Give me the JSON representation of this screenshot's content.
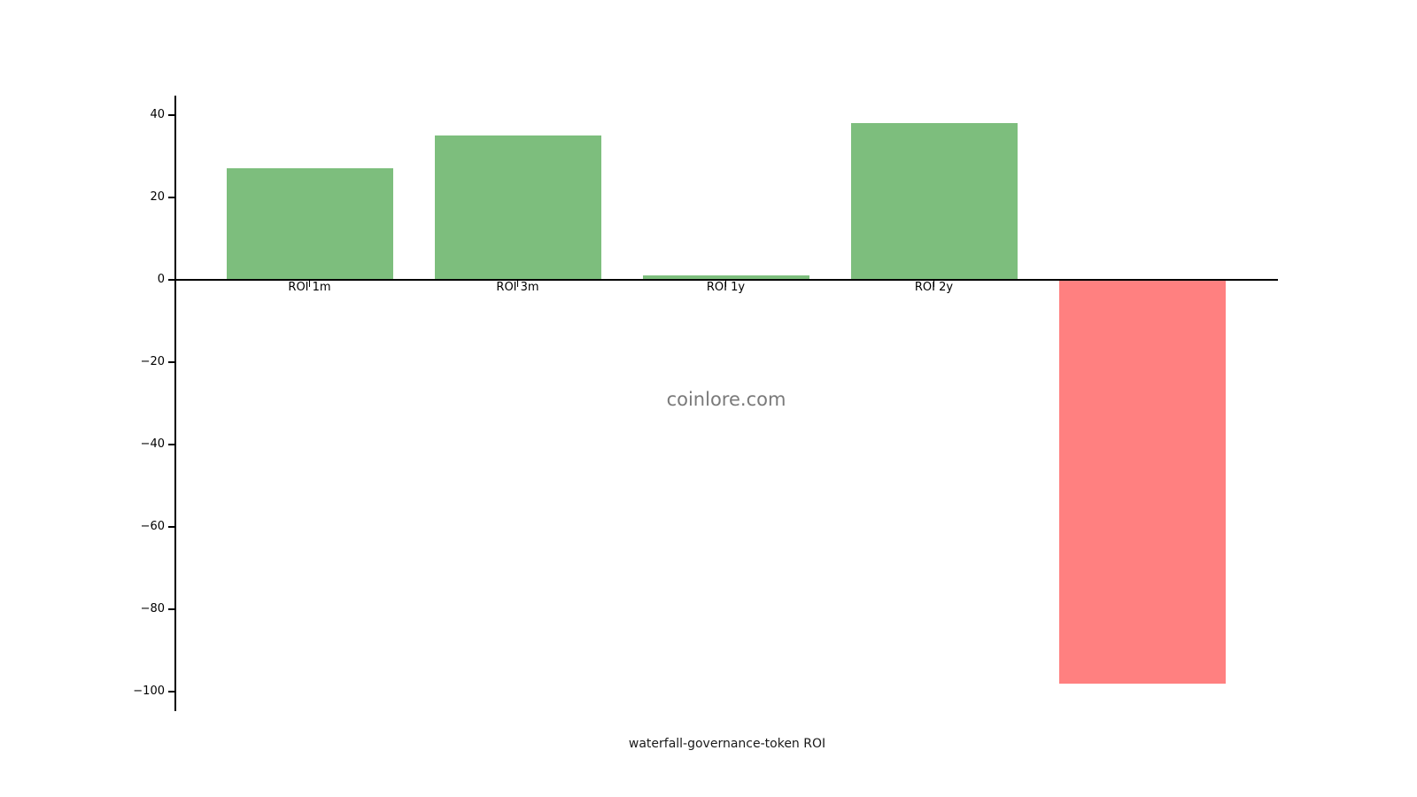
{
  "chart_data": {
    "type": "bar",
    "title": "waterfall-governance-token ROI",
    "watermark": "coinlore.com",
    "xlabel": "",
    "ylabel": "",
    "categories": [
      "ROI 1m",
      "ROI 3m",
      "ROI 1y",
      "ROI 2y",
      ""
    ],
    "values": [
      27,
      35,
      1,
      38,
      -98
    ],
    "series": [
      {
        "name": "ROI",
        "points": [
          {
            "label": "ROI 1m",
            "value": 27
          },
          {
            "label": "ROI 3m",
            "value": 35
          },
          {
            "label": "ROI 1y",
            "value": 1
          },
          {
            "label": "ROI 2y",
            "value": 38
          },
          {
            "label": "",
            "value": -98
          }
        ]
      }
    ],
    "yticks": [
      40,
      20,
      0,
      -20,
      -40,
      -60,
      -80,
      -100
    ],
    "ylim": [
      -104.8,
      44.8
    ],
    "grid": false,
    "legend_position": "none",
    "colors": {
      "positive_bar": "#7dbe7d",
      "negative_bar": "#ff8080",
      "axis": "#000000",
      "watermark_text": "#7a7a7a",
      "title_text": "#1a1a1a"
    }
  }
}
